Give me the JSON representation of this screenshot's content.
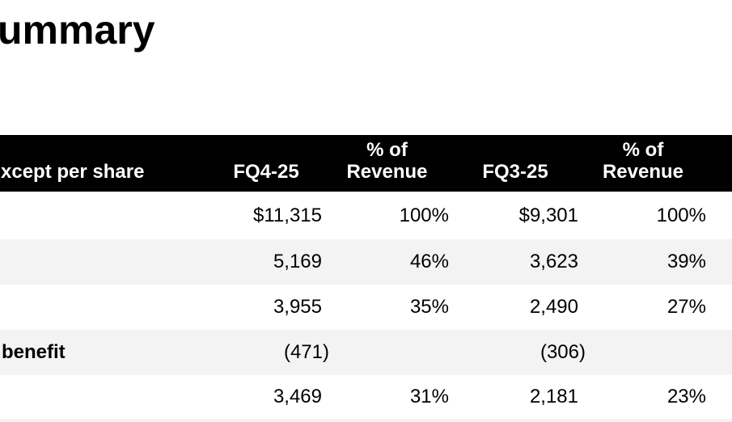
{
  "title": "ummary",
  "colors": {
    "header_bg": "#000000",
    "header_text": "#ffffff",
    "alt_row_bg": "#f3f3f4",
    "body_text": "#000000"
  },
  "table": {
    "headers": {
      "label": "xcept per share",
      "fq4": "FQ4-25",
      "pct1": "% of\nRevenue",
      "fq3": "FQ3-25",
      "pct2": "% of\nRevenue"
    },
    "rows": [
      {
        "label": "",
        "cells": [
          "$11,315",
          "100%",
          "$9,301",
          "100%"
        ]
      },
      {
        "label": "",
        "cells": [
          "5,169",
          "46%",
          "3,623",
          "39%"
        ]
      },
      {
        "label": "",
        "cells": [
          "3,955",
          "35%",
          "2,490",
          "27%"
        ]
      },
      {
        "label": "benefit",
        "cells": [
          "(471)",
          "",
          "(306)",
          ""
        ]
      },
      {
        "label": "",
        "cells": [
          "3,469",
          "31%",
          "2,181",
          "23%"
        ]
      }
    ]
  }
}
